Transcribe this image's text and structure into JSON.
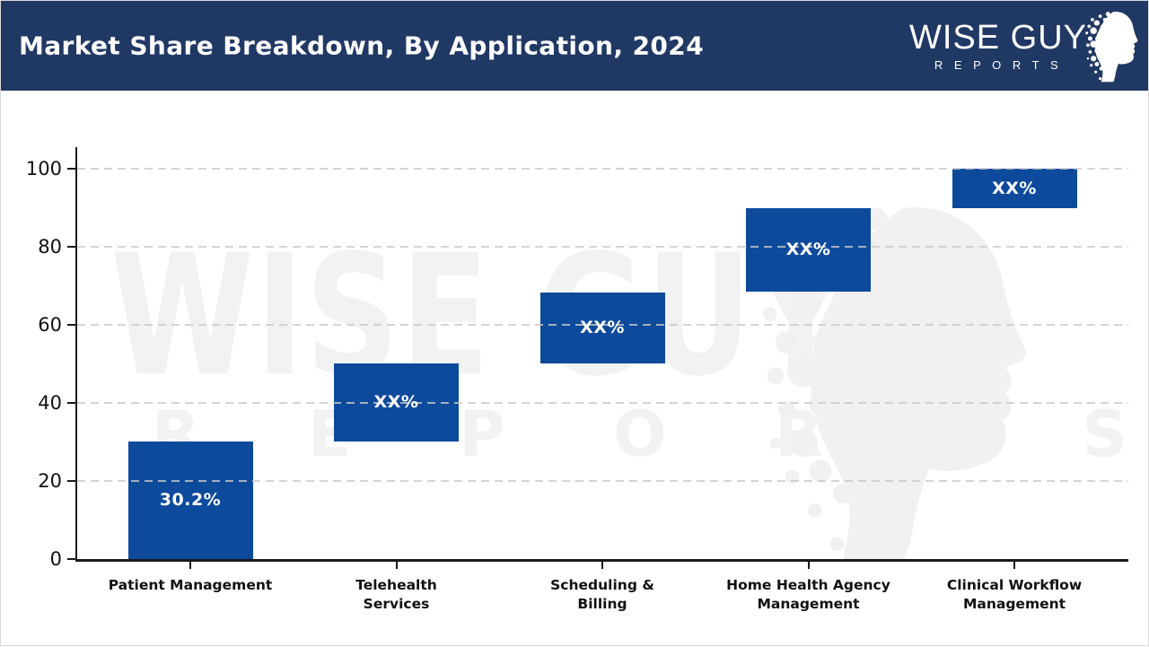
{
  "header": {
    "title": "Market Share Breakdown, By Application, 2024",
    "bg_color": "#203864",
    "logo": {
      "wordmark": "WISE GUY",
      "subtext": "R E P O R T S",
      "icon": "dotted-head-profile-icon"
    }
  },
  "watermark": {
    "wordmark": "WISE GUY",
    "subtext": "R E P O R T S",
    "icon": "dotted-head-profile-icon"
  },
  "chart_data": {
    "type": "bar",
    "subtype": "waterfall",
    "title": "Market Share Breakdown, By Application, 2024",
    "categories": [
      "Patient Management",
      "Telehealth\nServices",
      "Scheduling &\nBilling",
      "Home Health Agency\nManagement",
      "Clinical Workflow\nManagement"
    ],
    "segments": [
      {
        "category": "Patient Management",
        "start": 0,
        "end": 30.2,
        "label": "30.2%"
      },
      {
        "category": "Telehealth Services",
        "start": 30.2,
        "end": 50.2,
        "label": "XX%"
      },
      {
        "category": "Scheduling & Billing",
        "start": 50.2,
        "end": 68.2,
        "label": "XX%"
      },
      {
        "category": "Home Health Agency Management",
        "start": 68.5,
        "end": 90,
        "label": "XX%"
      },
      {
        "category": "Clinical Workflow Management",
        "start": 90,
        "end": 100,
        "label": "XX%"
      }
    ],
    "xlabel": "",
    "ylabel": "",
    "ylim": [
      0,
      105.5
    ],
    "yticks": [
      0,
      20,
      40,
      60,
      80,
      100
    ],
    "grid": "horizontal-dashed",
    "legend": "none",
    "bar_color": "#0d4a9c",
    "bar_label_color": "#ffffff",
    "axis_color": "#1a1a1a",
    "gridline_color": "#c9c9c9"
  }
}
